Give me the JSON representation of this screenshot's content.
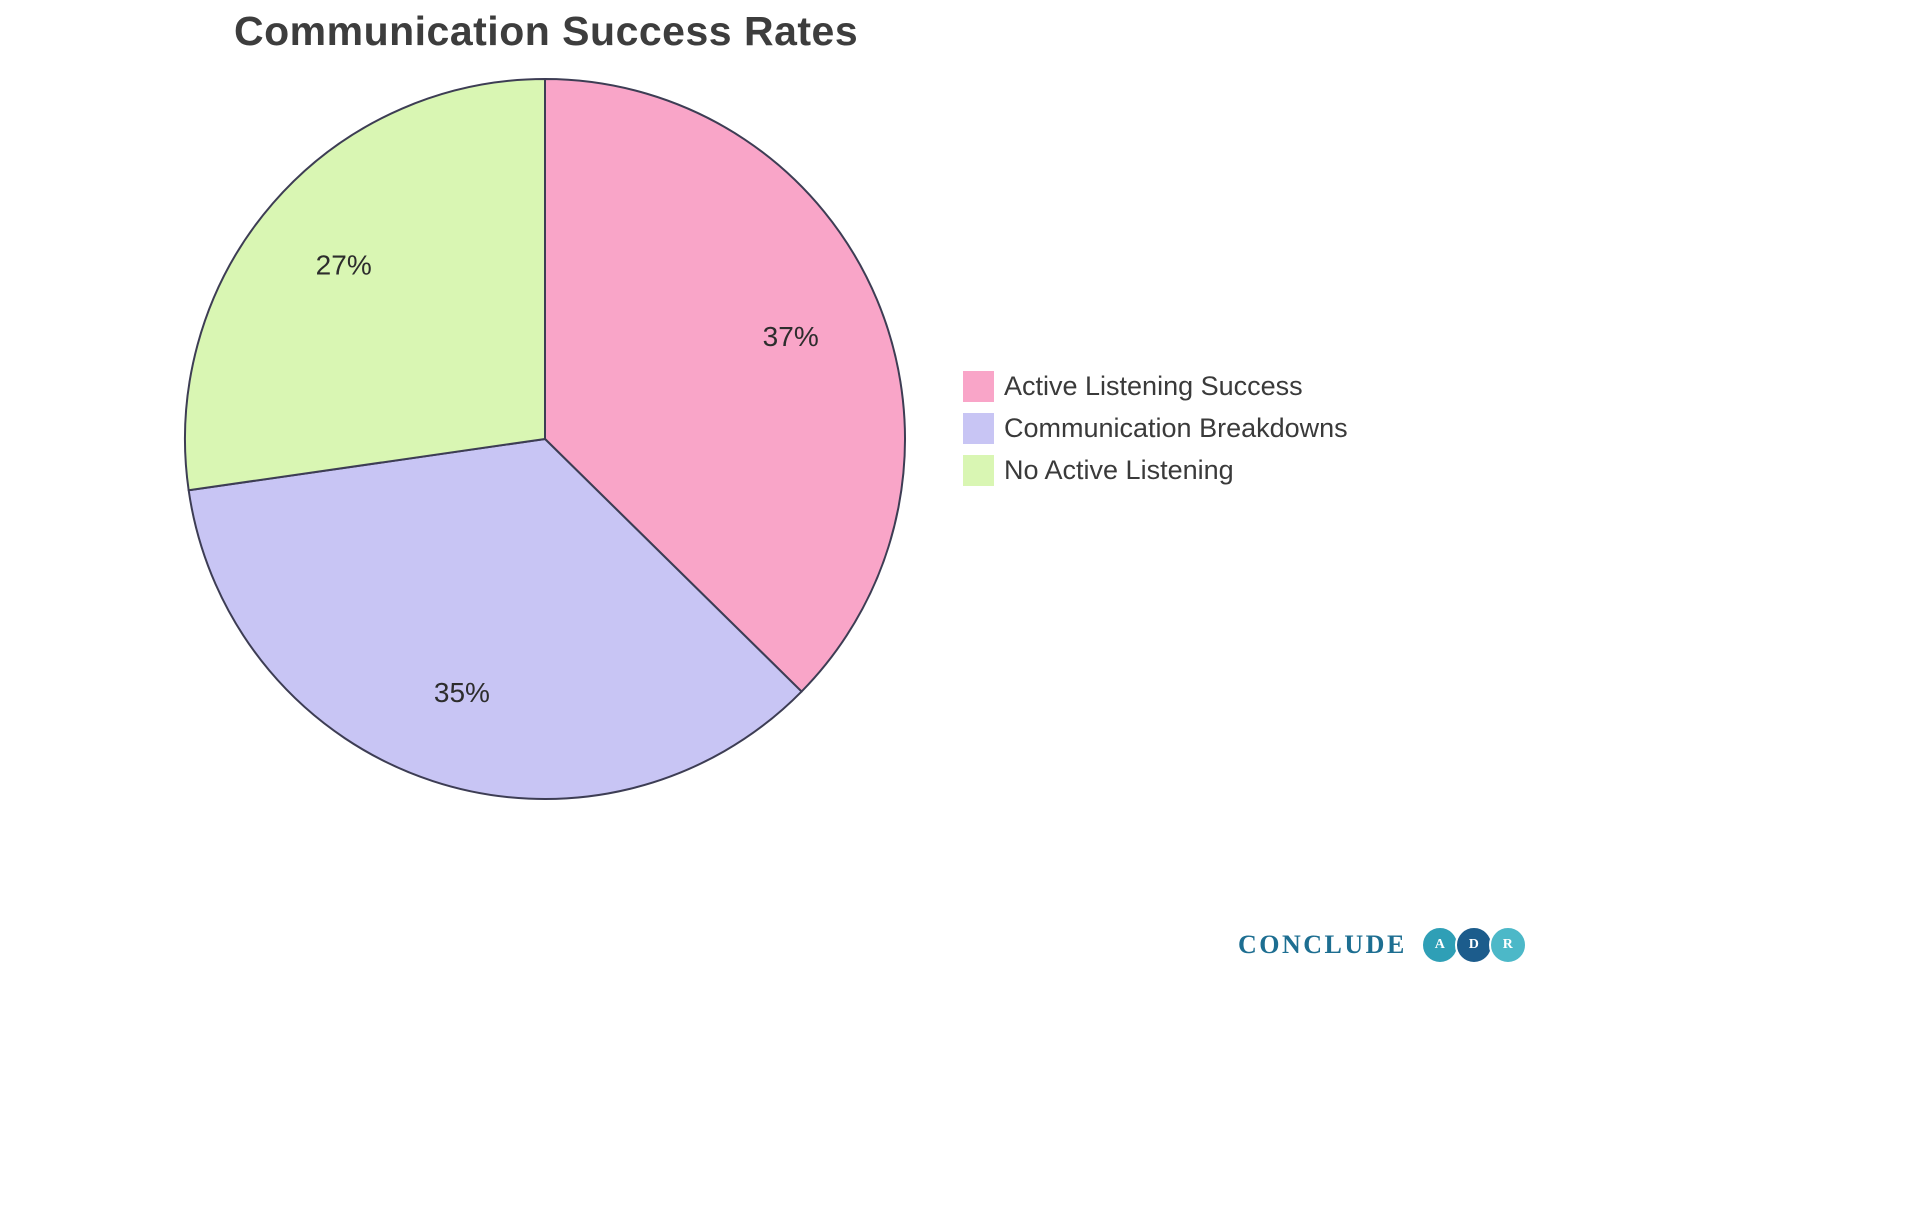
{
  "title": "Communication Success Rates",
  "chart_data": {
    "type": "pie",
    "title": "Communication Success Rates",
    "labels": [
      "Active Listening Success",
      "Communication Breakdowns",
      "No Active Listening"
    ],
    "values": [
      37,
      35,
      27
    ],
    "slice_labels": [
      "37%",
      "35%",
      "27%"
    ],
    "colors": [
      "#F9A5C8",
      "#C8C5F4",
      "#D9F6B3"
    ],
    "stroke_color": "#3d3d54",
    "start_angle_deg": 0,
    "direction": "clockwise",
    "legend_position": "right",
    "legend_text_color": "#3a3a3a"
  },
  "logo": {
    "wordmark": "CONCLUDE",
    "wordmark_color": "#1d6e91",
    "badges": [
      {
        "letter": "A",
        "color": "#2f9fb6"
      },
      {
        "letter": "D",
        "color": "#1c5c8c"
      },
      {
        "letter": "R",
        "color": "#4cb8c8"
      }
    ]
  }
}
